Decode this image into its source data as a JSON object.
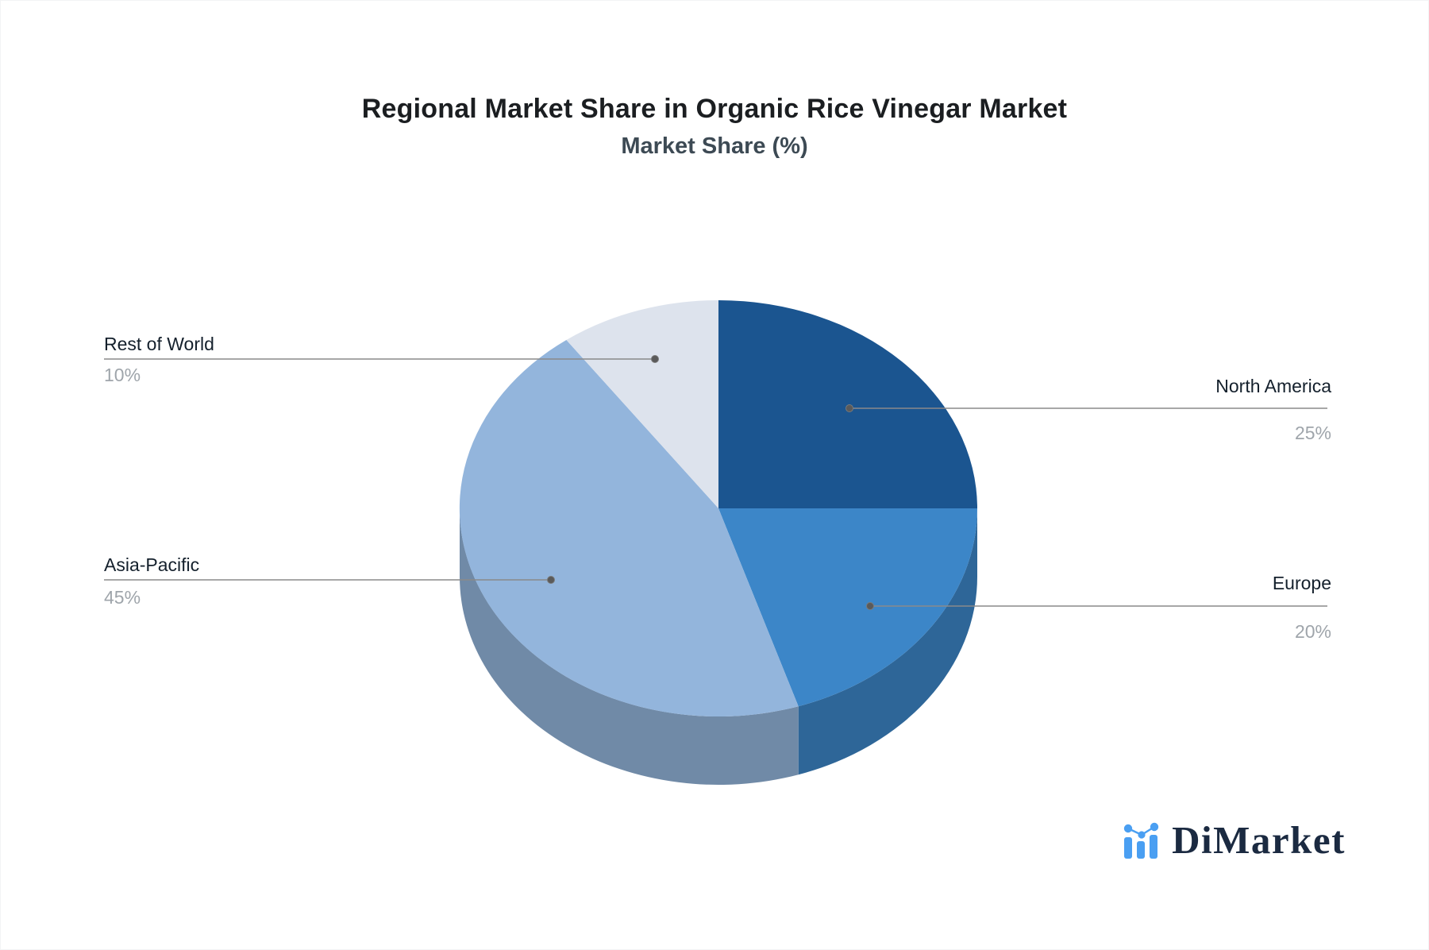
{
  "header": {
    "title": "Regional Market Share in Organic Rice Vinegar Market",
    "subtitle": "Market Share (%)"
  },
  "chart_data": {
    "type": "pie",
    "title": "Regional Market Share in Organic Rice Vinegar Market",
    "subtitle": "Market Share (%)",
    "unit": "%",
    "style": "3d",
    "start_angle_deg": -90,
    "direction": "clockwise",
    "legend": "callout-labels",
    "slices": [
      {
        "label": "North America",
        "value": 25,
        "display": "25%",
        "color": "#1b5590"
      },
      {
        "label": "Europe",
        "value": 20,
        "display": "20%",
        "color": "#3c86c8"
      },
      {
        "label": "Asia-Pacific",
        "value": 45,
        "display": "45%",
        "color": "#93b5dc"
      },
      {
        "label": "Rest of World",
        "value": 10,
        "display": "10%",
        "color": "#dde3ed"
      }
    ]
  },
  "branding": {
    "logo_text": "DiMarket",
    "logo_icon": "bar-line-chart-icon",
    "accent_color": "#4a9ff2",
    "text_color": "#1b2a41"
  }
}
